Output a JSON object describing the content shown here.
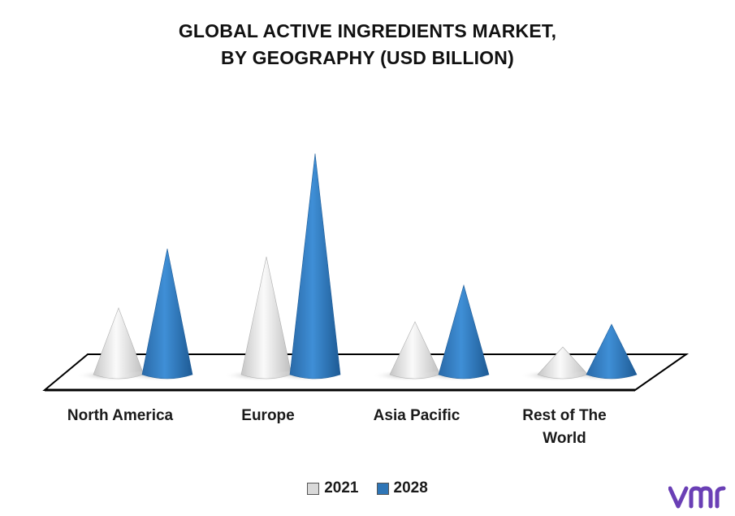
{
  "chart_data": {
    "type": "bar",
    "shape": "cone",
    "title": "GLOBAL ACTIVE INGREDIENTS MARKET,",
    "subtitle": "BY GEOGRAPHY (USD BILLION)",
    "categories": [
      "North America",
      "Europe",
      "Asia Pacific",
      [
        "Rest of The",
        "World"
      ]
    ],
    "series": [
      {
        "name": "2021",
        "color": "#d9d9d9",
        "values": [
          85,
          148,
          68,
          37
        ]
      },
      {
        "name": "2028",
        "color": "#2e75b6",
        "values": [
          158,
          275,
          113,
          65
        ]
      }
    ],
    "ylim": [
      0,
      300
    ],
    "legend": "bottom-center",
    "grid": false
  },
  "logo": {
    "text": "vmr",
    "color": "#6a3fb5"
  }
}
